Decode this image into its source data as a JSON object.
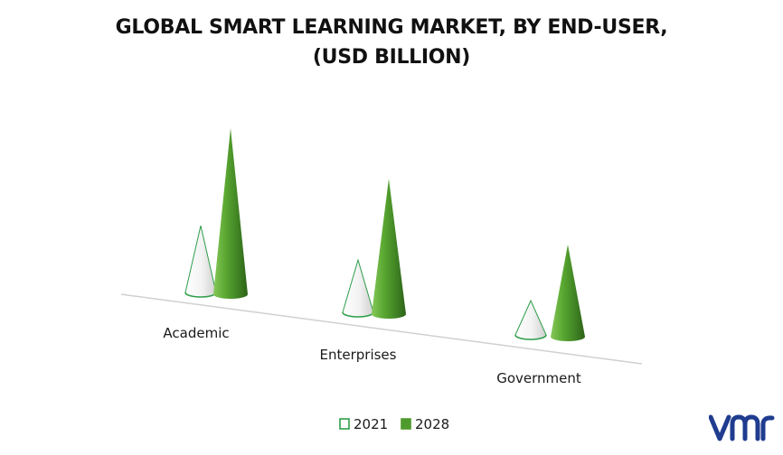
{
  "chart_data": {
    "type": "bar",
    "title": "GLOBAL SMART LEARNING MARKET, BY END-USER, (USD BILLION)",
    "title_lines": [
      "GLOBAL SMART LEARNING MARKET, BY END-USER,",
      "(USD BILLION)"
    ],
    "categories": [
      "Academic",
      "Enterprises",
      "Government"
    ],
    "series": [
      {
        "name": "2021",
        "values": [
          3.7,
          2.9,
          1.9
        ],
        "color": "#ffffff",
        "stroke": "#2e9e4a"
      },
      {
        "name": "2028",
        "values": [
          9.2,
          7.5,
          5.1
        ],
        "color": "#4f9a2c"
      }
    ],
    "grid": false,
    "legend_position": "bottom-center"
  },
  "brand": {
    "logo_icon": "vmr-logo-icon",
    "color": "#1f3c8f"
  }
}
